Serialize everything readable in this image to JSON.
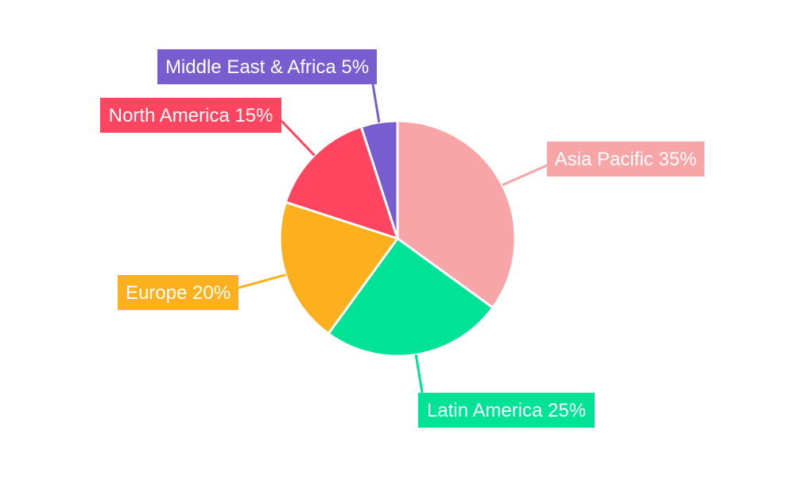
{
  "chart_data": {
    "type": "pie",
    "categories": [
      "Asia Pacific",
      "Latin America",
      "Europe",
      "North America",
      "Middle East & Africa"
    ],
    "values": [
      35,
      25,
      20,
      15,
      5
    ],
    "labels": [
      "Asia Pacific 35%",
      "Latin America 25%",
      "Europe 20%",
      "North America 15%",
      "Middle East & Africa 5%"
    ],
    "colors": [
      "#f8a5a8",
      "#00e396",
      "#fcb01d",
      "#ff4560",
      "#775dd0"
    ],
    "start_angle_degrees_clockwise_from_top": 0,
    "title": ""
  }
}
